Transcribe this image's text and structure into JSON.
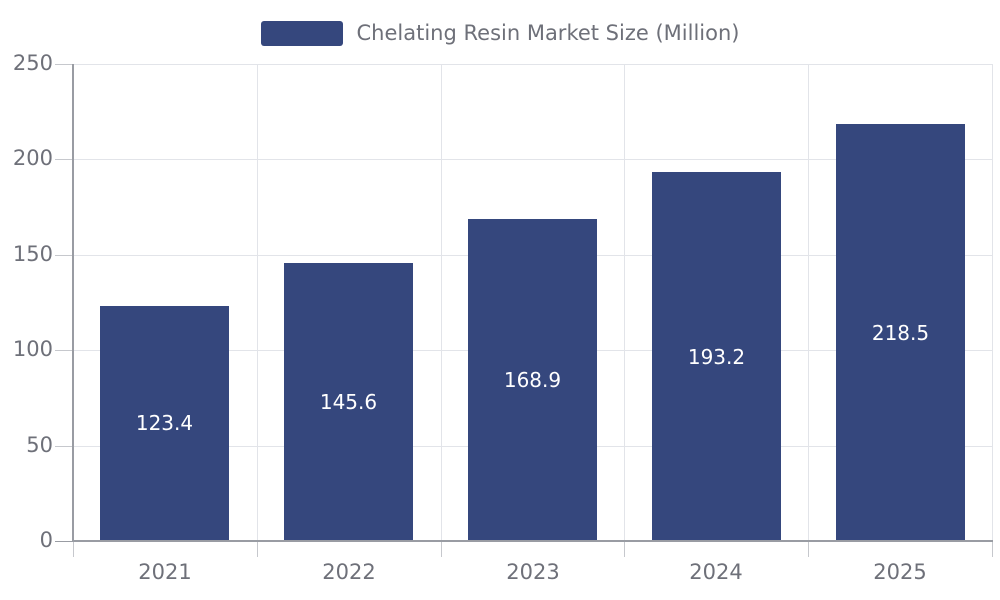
{
  "chart_data": {
    "type": "bar",
    "title": "Chelating Resin Market Size (Million)",
    "categories": [
      "2021",
      "2022",
      "2023",
      "2024",
      "2025"
    ],
    "values": [
      123.4,
      145.6,
      168.9,
      193.2,
      218.5
    ],
    "value_labels": [
      "123.4",
      "145.6",
      "168.9",
      "193.2",
      "218.5"
    ],
    "xlabel": "",
    "ylabel": "",
    "ylim": [
      0,
      250
    ],
    "yticks": [
      0,
      50,
      100,
      150,
      200,
      250
    ],
    "ytick_labels": [
      "0",
      "50",
      "100",
      "150",
      "200",
      "250"
    ],
    "grid": true,
    "legend_position": "top-center",
    "colors": {
      "bar": "#35477D",
      "bar_value_text": "#FFFFFF",
      "axis_text": "#6E7079",
      "legend_text": "#6E7079",
      "axis_line": "#999CA3",
      "grid_line": "#E2E4E9",
      "tick_line": "#C6C8CD",
      "background": "#FFFFFF"
    }
  }
}
